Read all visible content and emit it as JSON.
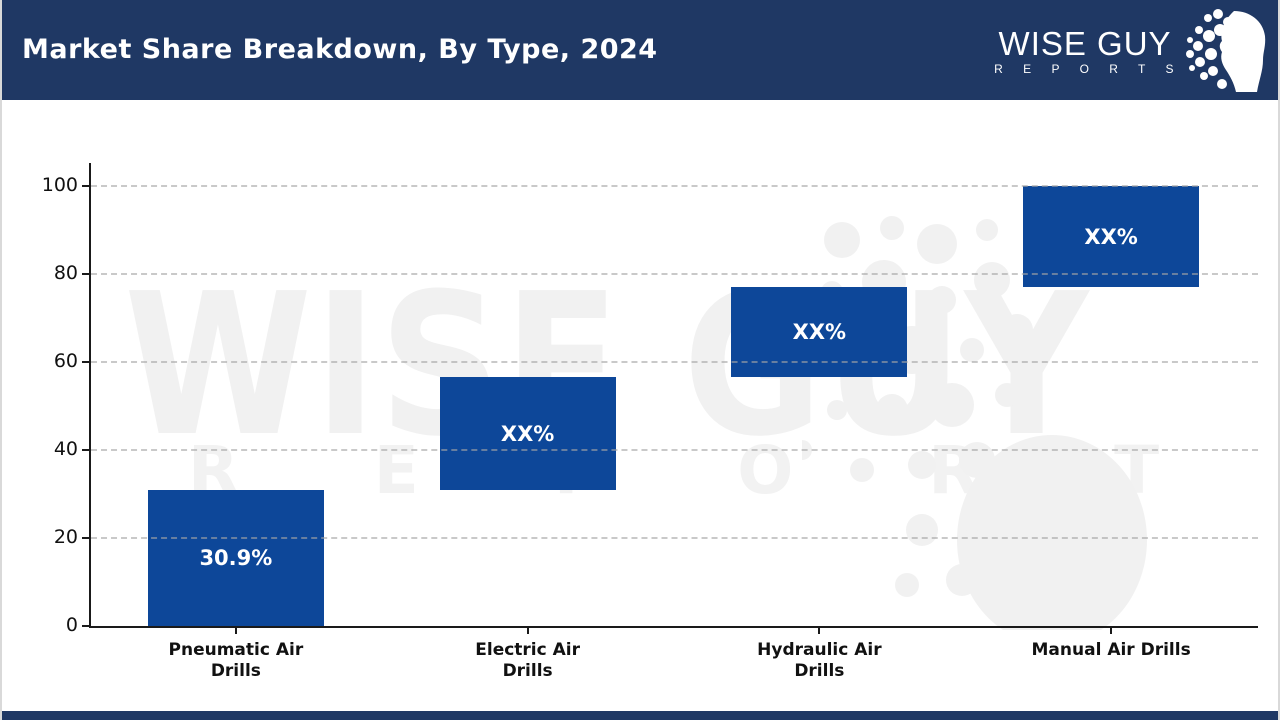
{
  "header": {
    "title": "Market Share Breakdown, By Type, 2024",
    "bg_color": "#1f3864",
    "logo": {
      "line1": "WISE GUY",
      "line2": "R E P O R T S"
    }
  },
  "watermark": {
    "line1": "WISE GUY",
    "line2": "R E P O R T S"
  },
  "footer": {
    "bg_color": "#1f3864"
  },
  "chart_data": {
    "type": "bar",
    "subtype": "waterfall",
    "title": "Market Share Breakdown, By Type, 2024",
    "categories": [
      "Pneumatic Air\nDrills",
      "Electric Air\nDrills",
      "Hydraulic Air\nDrills",
      "Manual Air Drills"
    ],
    "segments": [
      {
        "start": 0,
        "end": 30.9,
        "label": "30.9%"
      },
      {
        "start": 30.9,
        "end": 56.5,
        "label": "XX%"
      },
      {
        "start": 56.5,
        "end": 77.0,
        "label": "XX%"
      },
      {
        "start": 77.0,
        "end": 100.0,
        "label": "XX%"
      }
    ],
    "values": [
      30.9,
      25.6,
      20.5,
      23.0
    ],
    "xlabel": "",
    "ylabel": "",
    "ylim": [
      0,
      100
    ],
    "yticks": [
      0,
      20,
      40,
      60,
      80,
      100
    ],
    "grid": "dashed-horizontal-over-bars",
    "legend": "none",
    "bar_color": "#0d4799",
    "bar_label_color": "#ffffff",
    "axis_color": "#1a1a1a",
    "grid_color": "#a5a5a5"
  }
}
